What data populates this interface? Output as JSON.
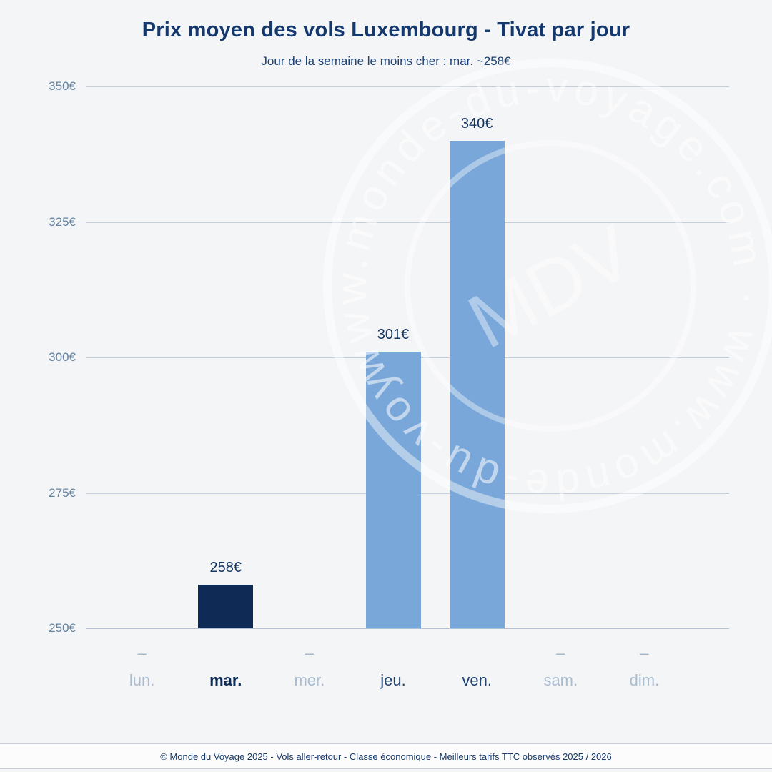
{
  "title": "Prix moyen des vols Luxembourg - Tivat par jour",
  "subtitle": "Jour de la semaine le moins cher : mar. ~258€",
  "footer": "© Monde du Voyage 2025 - Vols aller-retour - Classe économique - Meilleurs tarifs TTC observés 2025 / 2026",
  "watermark": {
    "circle_text": "www.monde-du-voyage.com  ·  www.monde-du-voyage.com",
    "center_text": "MDV"
  },
  "colors": {
    "background": "#f4f5f7",
    "title_navy": "#14386b",
    "bar_dark": "#0e2a55",
    "bar_light": "#79a7d9",
    "gridline": "#c3cedd",
    "tick_label": "#64829f",
    "day_inactive": "#a9bcd0",
    "day_active": "#1e4470"
  },
  "chart_data": {
    "type": "bar",
    "title": "Prix moyen des vols Luxembourg - Tivat par jour",
    "subtitle": "Jour de la semaine le moins cher : mar. ~258€",
    "categories": [
      "lun.",
      "mar.",
      "mer.",
      "jeu.",
      "ven.",
      "sam.",
      "dim."
    ],
    "values": [
      null,
      258,
      null,
      301,
      340,
      null,
      null
    ],
    "bar_labels": [
      "",
      "258€",
      "",
      "301€",
      "340€",
      "",
      ""
    ],
    "highlight_index": 1,
    "ylim": [
      250,
      350
    ],
    "ylabel_ticks": [
      "350€",
      "325€",
      "300€",
      "275€",
      "250€"
    ],
    "no_data_marker": "–",
    "grid": true,
    "legend": false,
    "currency": "€"
  }
}
